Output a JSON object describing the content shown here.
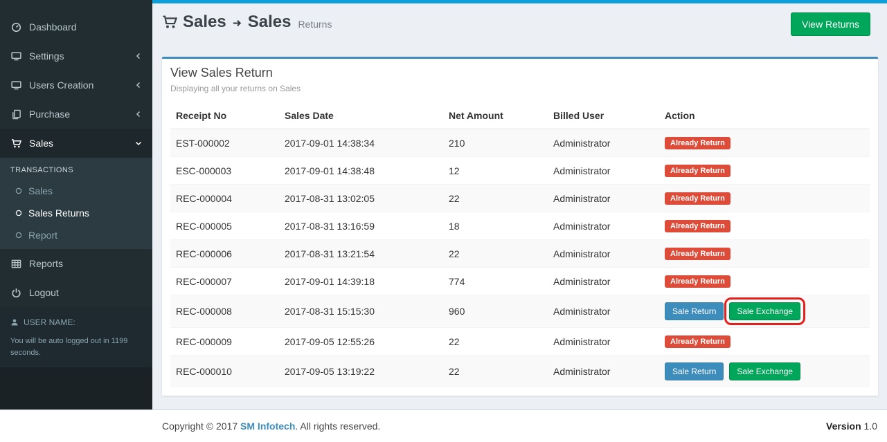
{
  "sidebar": {
    "items_top": [
      {
        "label": "Dashboard",
        "icon": "gauge-icon",
        "chevron": "",
        "active": false
      },
      {
        "label": "Settings",
        "icon": "monitor-icon",
        "chevron": "left",
        "active": false
      },
      {
        "label": "Users Creation",
        "icon": "monitor-icon",
        "chevron": "left",
        "active": false
      },
      {
        "label": "Purchase",
        "icon": "files-icon",
        "chevron": "left",
        "active": false
      },
      {
        "label": "Sales",
        "icon": "cart-icon",
        "chevron": "down",
        "active": true
      }
    ],
    "submenu_header": "TRANSACTIONS",
    "submenu": [
      {
        "label": "Sales",
        "active": false
      },
      {
        "label": "Sales Returns",
        "active": true
      },
      {
        "label": "Report",
        "active": false
      }
    ],
    "items_bottom": [
      {
        "label": "Reports",
        "icon": "table-icon",
        "chevron": "",
        "active": false
      },
      {
        "label": "Logout",
        "icon": "power-icon",
        "chevron": "",
        "active": false
      }
    ],
    "user_label": "USER NAME:",
    "logout_message": "You will be auto logged out in 1199 seconds."
  },
  "header": {
    "section": "Sales",
    "page": "Sales",
    "page_sub": "Returns",
    "view_returns_button": "View Returns"
  },
  "panel": {
    "title": "View Sales Return",
    "subtitle": "Displaying all your returns on Sales"
  },
  "table": {
    "columns": [
      "Receipt No",
      "Sales Date",
      "Net Amount",
      "Billed User",
      "Action"
    ],
    "rows": [
      {
        "receipt_no": "EST-000002",
        "sales_date": "2017-09-01 14:38:34",
        "net_amount": "210",
        "billed_user": "Administrator",
        "actions": [
          {
            "type": "already_return"
          }
        ]
      },
      {
        "receipt_no": "ESC-000003",
        "sales_date": "2017-09-01 14:38:48",
        "net_amount": "12",
        "billed_user": "Administrator",
        "actions": [
          {
            "type": "already_return"
          }
        ]
      },
      {
        "receipt_no": "REC-000004",
        "sales_date": "2017-08-31 13:02:05",
        "net_amount": "22",
        "billed_user": "Administrator",
        "actions": [
          {
            "type": "already_return"
          }
        ]
      },
      {
        "receipt_no": "REC-000005",
        "sales_date": "2017-08-31 13:16:59",
        "net_amount": "18",
        "billed_user": "Administrator",
        "actions": [
          {
            "type": "already_return"
          }
        ]
      },
      {
        "receipt_no": "REC-000006",
        "sales_date": "2017-08-31 13:21:54",
        "net_amount": "22",
        "billed_user": "Administrator",
        "actions": [
          {
            "type": "already_return"
          }
        ]
      },
      {
        "receipt_no": "REC-000007",
        "sales_date": "2017-09-01 14:39:18",
        "net_amount": "774",
        "billed_user": "Administrator",
        "actions": [
          {
            "type": "already_return"
          }
        ]
      },
      {
        "receipt_no": "REC-000008",
        "sales_date": "2017-08-31 15:15:30",
        "net_amount": "960",
        "billed_user": "Administrator",
        "actions": [
          {
            "type": "sale_return"
          },
          {
            "type": "sale_exchange",
            "highlighted": true
          }
        ]
      },
      {
        "receipt_no": "REC-000009",
        "sales_date": "2017-09-05 12:55:26",
        "net_amount": "22",
        "billed_user": "Administrator",
        "actions": [
          {
            "type": "already_return"
          }
        ]
      },
      {
        "receipt_no": "REC-000010",
        "sales_date": "2017-09-05 13:19:22",
        "net_amount": "22",
        "billed_user": "Administrator",
        "actions": [
          {
            "type": "sale_return"
          },
          {
            "type": "sale_exchange"
          }
        ]
      }
    ]
  },
  "badges": {
    "already_return": "Already Return",
    "sale_return": "Sale Return",
    "sale_exchange": "Sale Exchange"
  },
  "footer": {
    "copyright_prefix": "Copyright © 2017 ",
    "company": "SM Infotech",
    "copyright_suffix": ". All rights reserved.",
    "version_label": "Version",
    "version_value": "1.0"
  },
  "colors": {
    "accent_blue": "#3c8dbc",
    "success_green": "#00a65a",
    "danger_red": "#dd4b39",
    "annotation_red": "#e3201b",
    "top_bar_blue": "#0d9fd9",
    "sidebar_dark": "#222d32"
  }
}
